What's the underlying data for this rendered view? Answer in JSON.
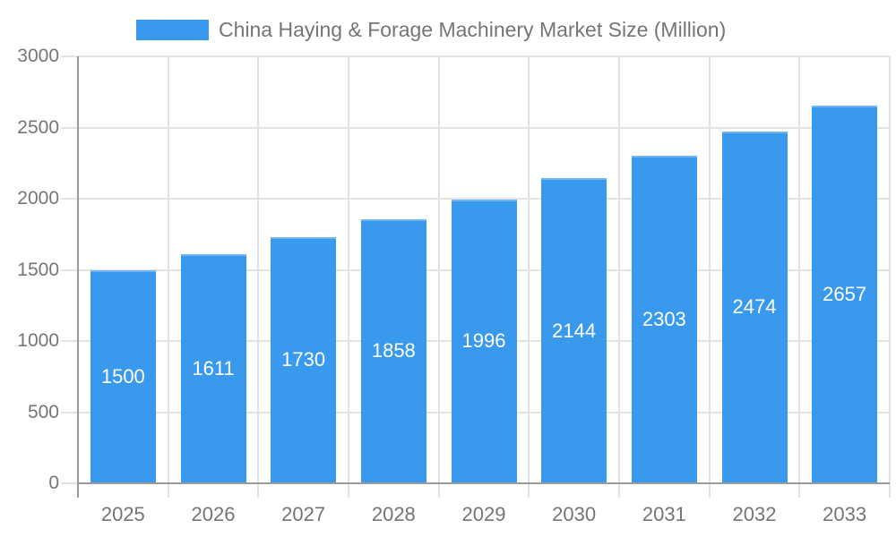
{
  "chart_data": {
    "type": "bar",
    "title": "China Haying & Forage Machinery Market Size (Million)",
    "categories": [
      "2025",
      "2026",
      "2027",
      "2028",
      "2029",
      "2030",
      "2031",
      "2032",
      "2033"
    ],
    "values": [
      1500,
      1611,
      1730,
      1858,
      1996,
      2144,
      2303,
      2474,
      2657
    ],
    "xlabel": "",
    "ylabel": "",
    "ylim": [
      0,
      3000
    ],
    "yticks": [
      0,
      500,
      1000,
      1500,
      2000,
      2500,
      3000
    ],
    "legend_position": "top",
    "grid": true,
    "value_label_position": "inside-center",
    "colors": {
      "bar": "#3999EC",
      "bar_value_label": "#FFFFFF",
      "axis_line": "#9A9A9A",
      "grid_line": "#E3E3E3",
      "tick_label": "#757575",
      "title": "#757575",
      "background": "#FFFFFF"
    }
  }
}
